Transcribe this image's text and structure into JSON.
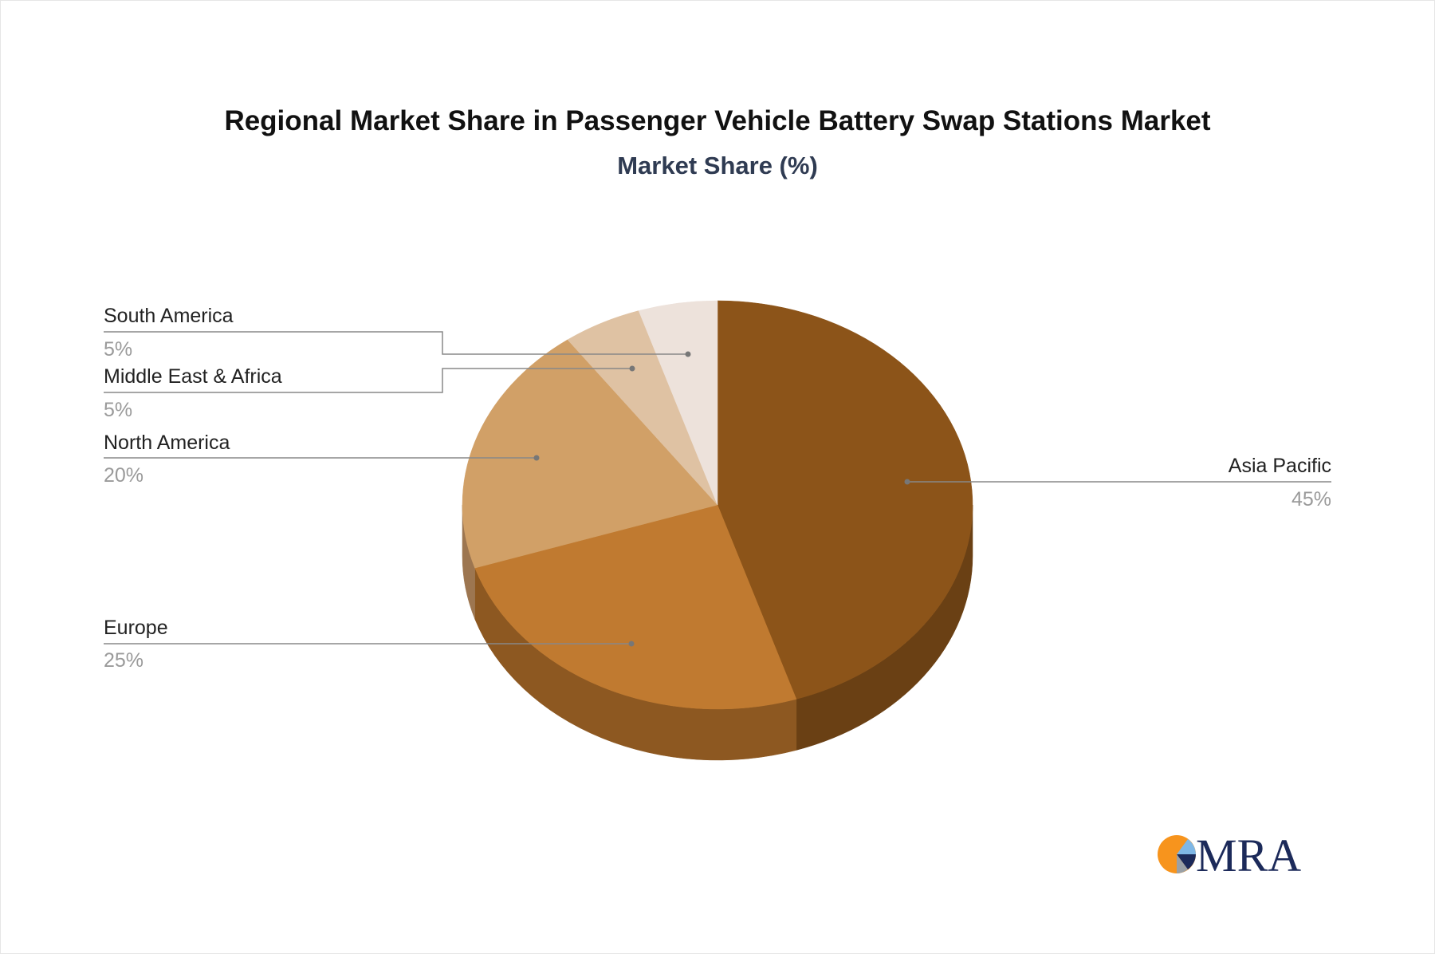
{
  "chart_data": {
    "type": "pie",
    "title": "Regional Market Share in Passenger Vehicle Battery Swap Stations Market",
    "subtitle": "Market Share (%)",
    "unit": "%",
    "style": "3d",
    "legend": "none",
    "categories": [
      "Asia Pacific",
      "Europe",
      "North America",
      "Middle East & Africa",
      "South America"
    ],
    "values": [
      45,
      25,
      20,
      5,
      5
    ],
    "value_labels": [
      "45%",
      "25%",
      "20%",
      "5%",
      "5%"
    ],
    "colors": [
      "#8c5419",
      "#c07a30",
      "#d1a067",
      "#dfc2a3",
      "#ede2db"
    ],
    "side_colors": [
      "#6a4014",
      "#8d5821",
      "#9d7650",
      "#a89078",
      "#b3a9a1"
    ]
  },
  "logo": {
    "text": "MRA",
    "colors": {
      "orange": "#f7941d",
      "light_blue": "#7fb7e6",
      "navy": "#1c2a5a",
      "gray": "#9aa0a6"
    }
  }
}
